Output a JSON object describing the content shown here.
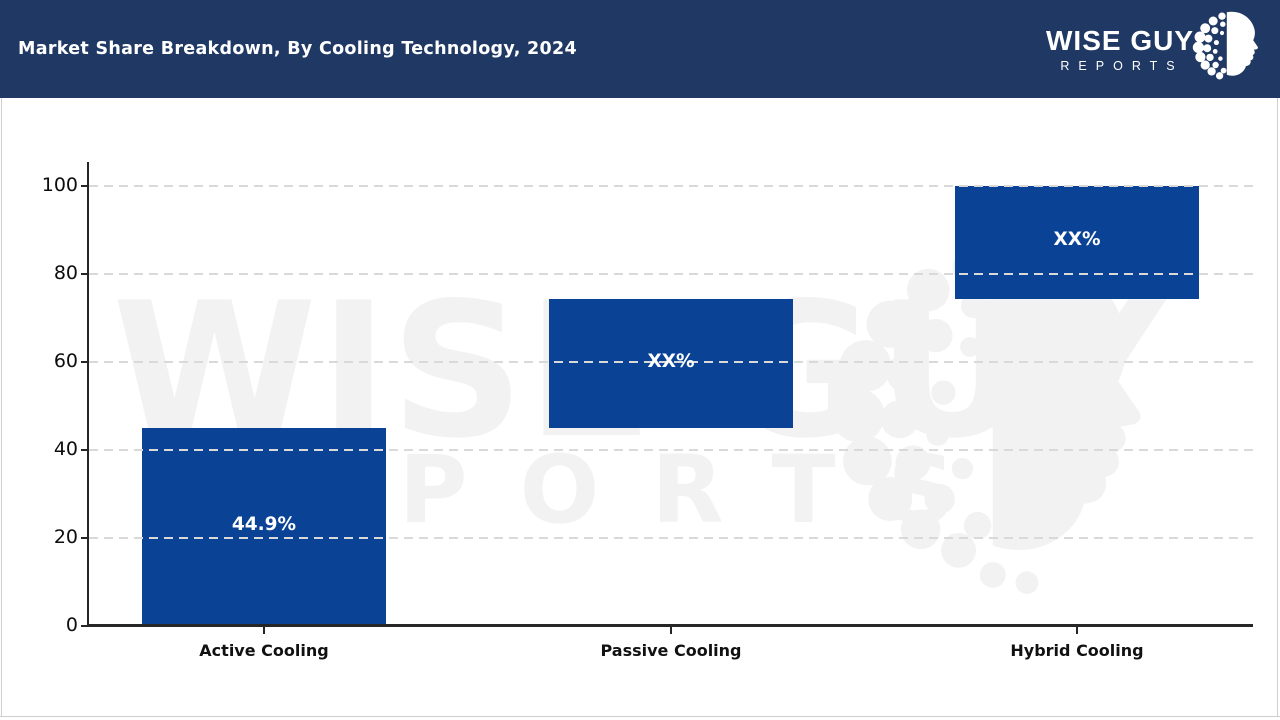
{
  "header": {
    "title": "Market Share Breakdown, By Cooling Technology, 2024",
    "bg_color": "#203864",
    "logo": {
      "line1": "WISE GUY",
      "line2": "REPORTS"
    }
  },
  "watermark": {
    "line1": "WISE GUY",
    "line2": "REPORTS"
  },
  "chart_data": {
    "type": "bar",
    "subtype": "floating-cumulative-segments",
    "title": "Market Share Breakdown, By Cooling Technology, 2024",
    "categories": [
      "Active Cooling",
      "Passive Cooling",
      "Hybrid Cooling"
    ],
    "segments": [
      {
        "category": "Active Cooling",
        "start": 0,
        "end": 44.9,
        "label": "44.9%"
      },
      {
        "category": "Passive Cooling",
        "start": 44.9,
        "end": 74.4,
        "label": "XX%"
      },
      {
        "category": "Hybrid Cooling",
        "start": 74.4,
        "end": 100,
        "label": "XX%"
      }
    ],
    "ylim": [
      0,
      100
    ],
    "yticks": [
      0,
      20,
      40,
      60,
      80,
      100
    ],
    "grid": "horizontal dashed, drawn above bars",
    "legend": "none",
    "bar_color": "#0A4296",
    "bar_label_color": "#ffffff",
    "axis_color": "#262626",
    "grid_color": "#d9d9d9"
  }
}
